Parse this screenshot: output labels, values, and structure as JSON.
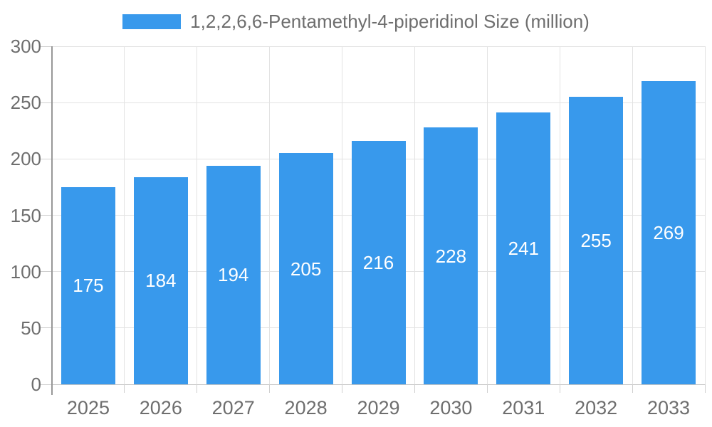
{
  "legend": {
    "label": "1,2,2,6,6-Pentamethyl-4-piperidinol Size (million)"
  },
  "colors": {
    "bar": "#3899ec",
    "axis_text": "#6e6e6e",
    "grid": "#e3e3e3",
    "baseline": "#c4c4c4",
    "tick": "#cfcfcf",
    "axis_line": "#979797",
    "value_label": "#ffffff"
  },
  "chart_data": {
    "type": "bar",
    "title": "",
    "xlabel": "",
    "ylabel": "",
    "categories": [
      "2025",
      "2026",
      "2027",
      "2028",
      "2029",
      "2030",
      "2031",
      "2032",
      "2033"
    ],
    "series": [
      {
        "name": "1,2,2,6,6-Pentamethyl-4-piperidinol Size (million)",
        "values": [
          175,
          184,
          194,
          205,
          216,
          228,
          241,
          255,
          269
        ]
      }
    ],
    "value_labels": [
      "175",
      "184",
      "194",
      "205",
      "216",
      "228",
      "241",
      "255",
      "269"
    ],
    "ylim": [
      0,
      300
    ],
    "yticks": [
      0,
      50,
      100,
      150,
      200,
      250,
      300
    ],
    "grid": true,
    "legend_position": "top-center",
    "value_label_position": "inside-center"
  }
}
